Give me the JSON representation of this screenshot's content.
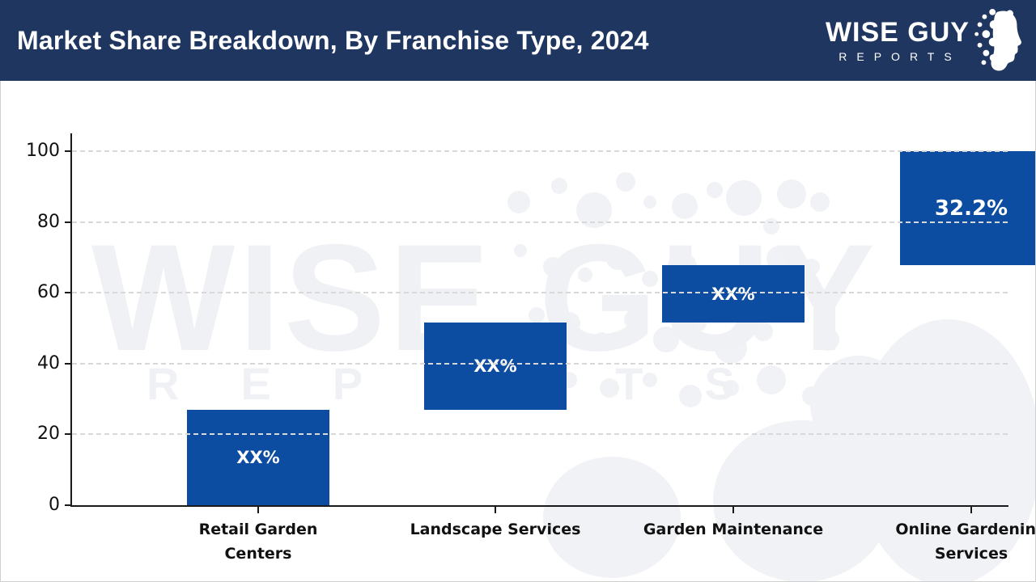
{
  "header": {
    "title": "Market Share Breakdown, By Franchise Type, 2024",
    "logo": {
      "line1": "WISE GUY",
      "line2": "REPORTS",
      "face_icon": "dotted-face-profile-icon"
    }
  },
  "watermark": {
    "line1": "WISE GUY",
    "line2": "REPORTS"
  },
  "chart_data": {
    "type": "bar",
    "variant": "waterfall",
    "title": "Market Share Breakdown, By Franchise Type, 2024",
    "categories": [
      "Retail Garden Centers",
      "Landscape Services",
      "Garden Maintenance",
      "Online Gardening Services"
    ],
    "categories_lines": [
      [
        "Retail Garden",
        "Centers"
      ],
      [
        "Landscape Services"
      ],
      [
        "Garden Maintenance"
      ],
      [
        "Online Gardening",
        "Services"
      ]
    ],
    "segments": [
      {
        "category": "Retail Garden Centers",
        "label": "XX%",
        "start": 0,
        "end": 26.9,
        "emphasis": false
      },
      {
        "category": "Landscape Services",
        "label": "XX%",
        "start": 26.9,
        "end": 51.5,
        "emphasis": false
      },
      {
        "category": "Garden Maintenance",
        "label": "XX%",
        "start": 51.5,
        "end": 67.8,
        "emphasis": false
      },
      {
        "category": "Online Gardening Services",
        "label": "32.2%",
        "start": 67.8,
        "end": 100,
        "emphasis": true
      }
    ],
    "xlabel": "",
    "ylabel": "",
    "ylim": [
      0,
      100
    ],
    "yticks": [
      0,
      20,
      40,
      60,
      80,
      100
    ],
    "grid": "horizontal-dashed",
    "legend": "none",
    "bar_color": "#0c4da2",
    "bar_label_color": "#ffffff",
    "axis_color": "#1a1a1a",
    "gridline_color": "#d8d8d8",
    "header_color": "#1f3660"
  }
}
